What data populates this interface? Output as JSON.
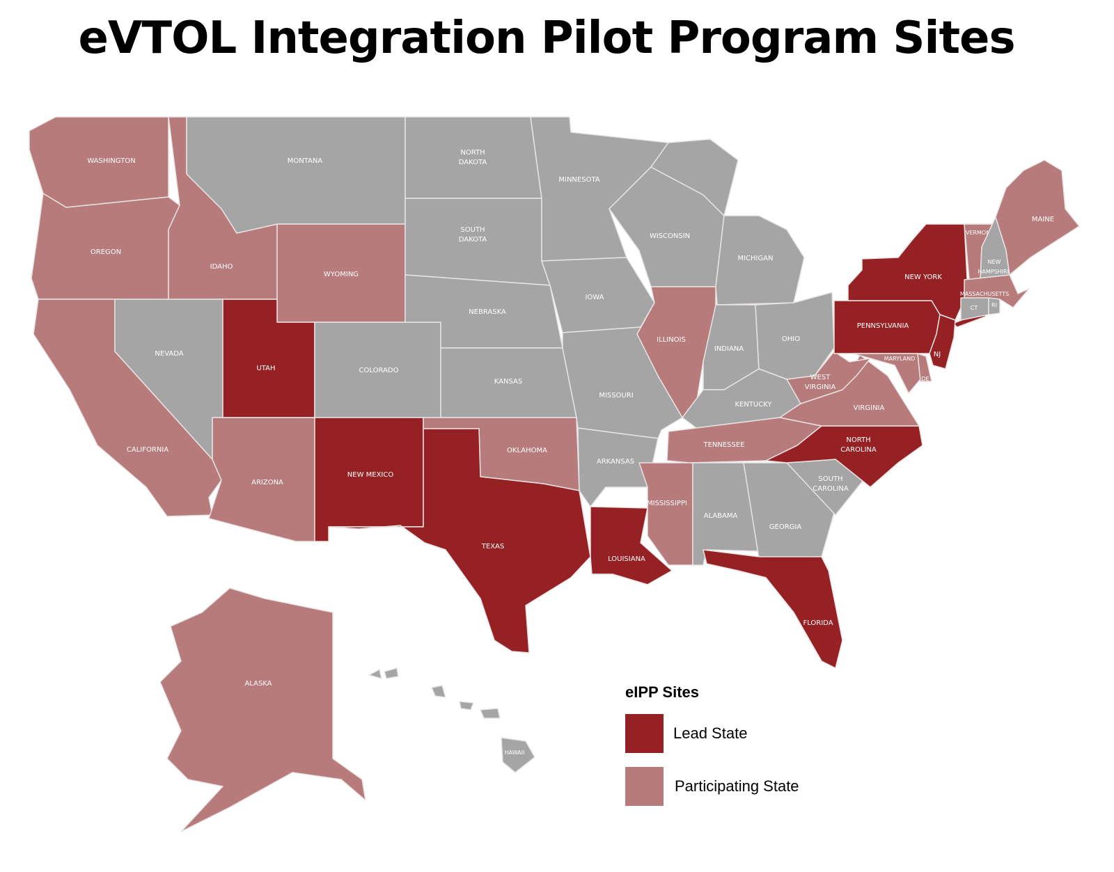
{
  "title": "eVTOL Integration Pilot Program Sites",
  "colors": {
    "lead": "#952124",
    "participating": "#b67b7a",
    "none": "#a5a5a6"
  },
  "legend": {
    "title": "eIPP Sites",
    "items": [
      {
        "label": "Lead State",
        "status": "lead"
      },
      {
        "label": "Participating State",
        "status": "participating"
      }
    ]
  },
  "states": [
    {
      "id": "WA",
      "label": "WASHINGTON",
      "status": "participating"
    },
    {
      "id": "OR",
      "label": "OREGON",
      "status": "participating"
    },
    {
      "id": "CA",
      "label": "CALIFORNIA",
      "status": "participating"
    },
    {
      "id": "ID",
      "label": "IDAHO",
      "status": "participating"
    },
    {
      "id": "NV",
      "label": "NEVADA",
      "status": "none"
    },
    {
      "id": "MT",
      "label": "MONTANA",
      "status": "none"
    },
    {
      "id": "WY",
      "label": "WYOMING",
      "status": "participating"
    },
    {
      "id": "UT",
      "label": "UTAH",
      "status": "lead"
    },
    {
      "id": "AZ",
      "label": "ARIZONA",
      "status": "participating"
    },
    {
      "id": "CO",
      "label": "COLORADO",
      "status": "none"
    },
    {
      "id": "NM",
      "label": "NEW MEXICO",
      "status": "lead"
    },
    {
      "id": "ND",
      "label": "NORTH DAKOTA",
      "status": "none"
    },
    {
      "id": "SD",
      "label": "SOUTH DAKOTA",
      "status": "none"
    },
    {
      "id": "NE",
      "label": "NEBRASKA",
      "status": "none"
    },
    {
      "id": "KS",
      "label": "KANSAS",
      "status": "none"
    },
    {
      "id": "OK",
      "label": "OKLAHOMA",
      "status": "participating"
    },
    {
      "id": "TX",
      "label": "TEXAS",
      "status": "lead"
    },
    {
      "id": "MN",
      "label": "MINNESOTA",
      "status": "none"
    },
    {
      "id": "IA",
      "label": "IOWA",
      "status": "none"
    },
    {
      "id": "MO",
      "label": "MISSOURI",
      "status": "none"
    },
    {
      "id": "AR",
      "label": "ARKANSAS",
      "status": "none"
    },
    {
      "id": "LA",
      "label": "LOUISIANA",
      "status": "lead"
    },
    {
      "id": "WI",
      "label": "WISCONSIN",
      "status": "none"
    },
    {
      "id": "MI",
      "label": "MICHIGAN",
      "status": "none"
    },
    {
      "id": "IL",
      "label": "ILLINOIS",
      "status": "participating"
    },
    {
      "id": "IN",
      "label": "INDIANA",
      "status": "none"
    },
    {
      "id": "OH",
      "label": "OHIO",
      "status": "none"
    },
    {
      "id": "KY",
      "label": "KENTUCKY",
      "status": "none"
    },
    {
      "id": "TN",
      "label": "TENNESSEE",
      "status": "participating"
    },
    {
      "id": "MS",
      "label": "MISSISSIPPI",
      "status": "participating"
    },
    {
      "id": "AL",
      "label": "ALABAMA",
      "status": "none"
    },
    {
      "id": "GA",
      "label": "GEORGIA",
      "status": "none"
    },
    {
      "id": "FL",
      "label": "FLORIDA",
      "status": "lead"
    },
    {
      "id": "SC",
      "label": "SOUTH CAROLINA",
      "status": "none"
    },
    {
      "id": "NC",
      "label": "NORTH CAROLINA",
      "status": "lead"
    },
    {
      "id": "VA",
      "label": "VIRGINIA",
      "status": "participating"
    },
    {
      "id": "WV",
      "label": "WEST VIRGINIA",
      "status": "participating"
    },
    {
      "id": "PA",
      "label": "PENNSYLVANIA",
      "status": "lead"
    },
    {
      "id": "NY",
      "label": "NEW YORK",
      "status": "lead"
    },
    {
      "id": "NJ",
      "label": "NJ",
      "status": "lead"
    },
    {
      "id": "MD",
      "label": "MARYLAND",
      "status": "participating"
    },
    {
      "id": "DE",
      "label": "DE",
      "status": "participating"
    },
    {
      "id": "VT",
      "label": "VERMONT",
      "status": "participating"
    },
    {
      "id": "NH",
      "label": "NEW HAMPSHIRE",
      "status": "none"
    },
    {
      "id": "ME",
      "label": "MAINE",
      "status": "participating"
    },
    {
      "id": "MA",
      "label": "MASSACHUSETTS",
      "status": "participating"
    },
    {
      "id": "CT",
      "label": "CT",
      "status": "none"
    },
    {
      "id": "RI",
      "label": "RI",
      "status": "none"
    },
    {
      "id": "AK",
      "label": "ALASKA",
      "status": "participating"
    },
    {
      "id": "HI",
      "label": "HAWAII",
      "status": "none"
    }
  ]
}
